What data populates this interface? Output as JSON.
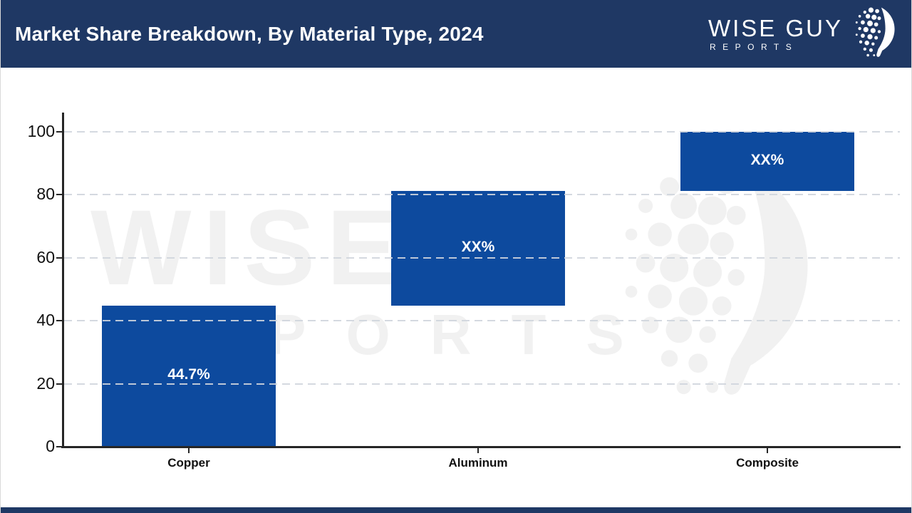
{
  "header": {
    "title": "Market Share Breakdown, By Material Type, 2024",
    "background_color": "#1f3864",
    "logo": {
      "line1": "WISE GUY",
      "line2": "REPORTS"
    }
  },
  "watermark": {
    "line1": "WISE",
    "line2": "REPORTS"
  },
  "chart_data": {
    "type": "bar",
    "subtype": "floating-waterfall",
    "title": "Market Share Breakdown, By Material Type, 2024",
    "categories": [
      "Copper",
      "Aluminum",
      "Composite"
    ],
    "segments": [
      {
        "category": "Copper",
        "start": 0,
        "end": 44.7,
        "label": "44.7%"
      },
      {
        "category": "Aluminum",
        "start": 44.7,
        "end": 81.2,
        "label": "XX%"
      },
      {
        "category": "Composite",
        "start": 81.2,
        "end": 100,
        "label": "XX%"
      }
    ],
    "xlabel": "",
    "ylabel": "",
    "ylim": [
      0,
      100
    ],
    "yticks": [
      0,
      20,
      40,
      60,
      80,
      100
    ],
    "grid": "horizontal-dashed",
    "gridline_color": "#d9d9d9",
    "bar_color": "#0d4a9e",
    "bar_label_color": "#ffffff",
    "axis_color": "#262626",
    "tick_label_color": "#111111",
    "legend": "none"
  }
}
